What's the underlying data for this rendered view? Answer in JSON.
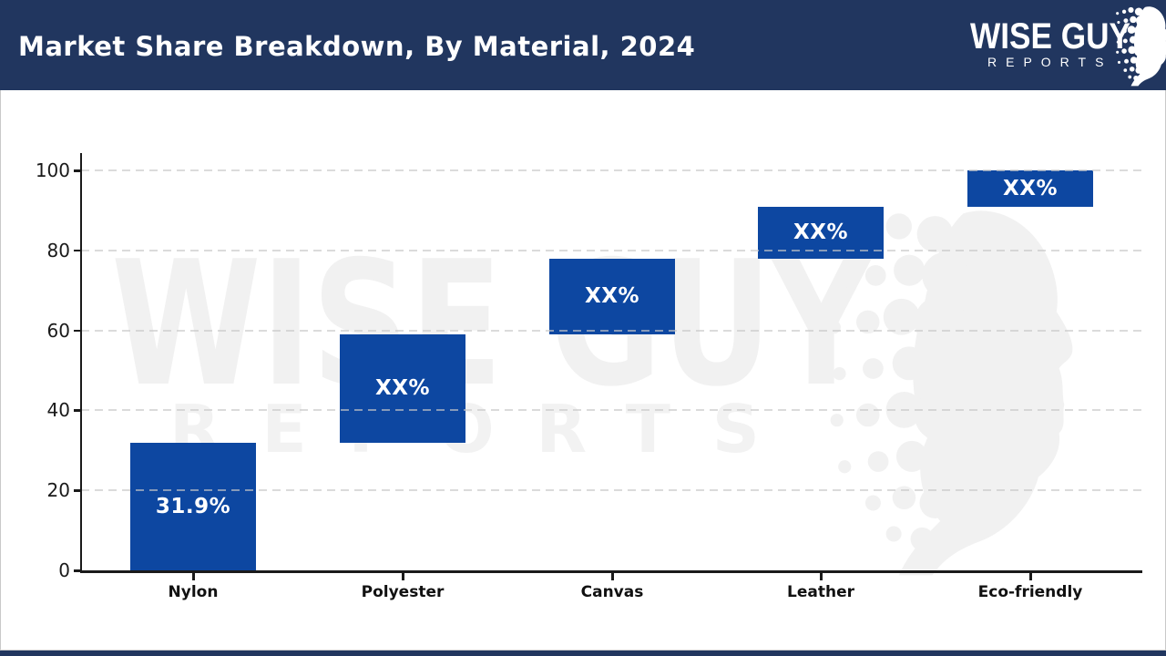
{
  "header": {
    "title": "Market Share Breakdown, By Material, 2024",
    "logo": {
      "name": "WISE GUY",
      "subtitle": "REPORTS"
    }
  },
  "watermark": {
    "name": "WISE GUY",
    "subtitle": "REPORTS"
  },
  "chart_data": {
    "type": "bar",
    "subtype": "waterfall",
    "title": "Market Share Breakdown, By Material, 2024",
    "xlabel": "",
    "ylabel": "",
    "ylim": [
      0,
      100
    ],
    "yticks": [
      0,
      20,
      40,
      60,
      80,
      100
    ],
    "grid": "horizontal dashed",
    "legend": "none",
    "categories": [
      "Nylon",
      "Polyester",
      "Canvas",
      "Leather",
      "Eco-friendly"
    ],
    "segments": [
      {
        "category": "Nylon",
        "start": 0,
        "end": 31.9,
        "value_label": "31.9%"
      },
      {
        "category": "Polyester",
        "start": 31.9,
        "end": 59,
        "value_label": "XX%"
      },
      {
        "category": "Canvas",
        "start": 59,
        "end": 78,
        "value_label": "XX%"
      },
      {
        "category": "Leather",
        "start": 78,
        "end": 91,
        "value_label": "XX%"
      },
      {
        "category": "Eco-friendly",
        "start": 91,
        "end": 100,
        "value_label": "XX%"
      }
    ]
  },
  "colors": {
    "header_bg": "#21365f",
    "footer_bg": "#21365f",
    "bar": "#0d47a1",
    "bar_label": "#ffffff",
    "axis": "#1a1a1a",
    "grid": "#d9d9d9",
    "watermark": "#f1f1f1",
    "title_text": "#ffffff"
  }
}
